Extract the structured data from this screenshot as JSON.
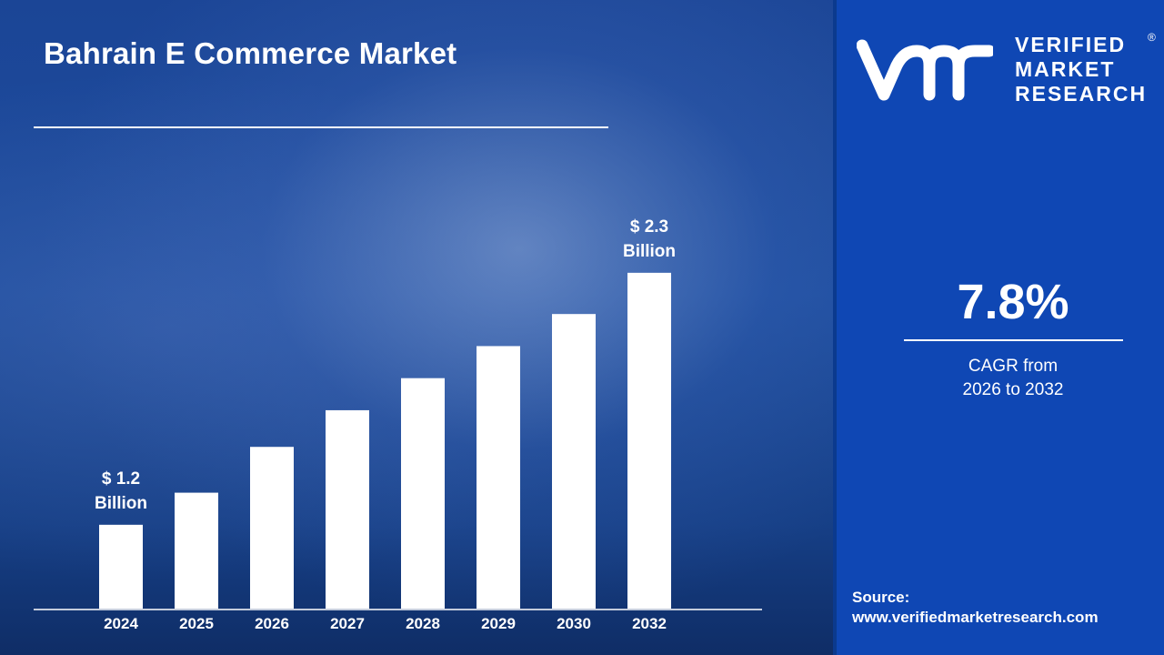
{
  "header": {
    "title": "Bahrain E Commerce Market"
  },
  "logo": {
    "lines": [
      "VERIFIED",
      "MARKET",
      "RESEARCH"
    ],
    "registered": "®"
  },
  "cagr": {
    "value": "7.8%",
    "label_line1": "CAGR from",
    "label_line2": "2026 to 2032"
  },
  "source": {
    "label": "Source:",
    "url": "www.verifiedmarketresearch.com"
  },
  "colors": {
    "background": "#1b4596",
    "panel": "#0f47b4",
    "bars": "#ffffff",
    "text": "#ffffff"
  },
  "chart_data": {
    "type": "bar",
    "title": "Bahrain E Commerce Market",
    "categories": [
      "2024",
      "2025",
      "2026",
      "2027",
      "2028",
      "2029",
      "2030",
      "2032"
    ],
    "values": [
      1.2,
      1.34,
      1.54,
      1.7,
      1.84,
      1.98,
      2.12,
      2.3
    ],
    "unit": "USD Billion",
    "annotations": [
      {
        "category": "2024",
        "line1": "$ 1.2",
        "line2": "Billion"
      },
      {
        "category": "2032",
        "line1": "$ 2.3",
        "line2": "Billion"
      }
    ],
    "xlabel": "",
    "ylabel": "",
    "grid": false,
    "legend": "none"
  }
}
